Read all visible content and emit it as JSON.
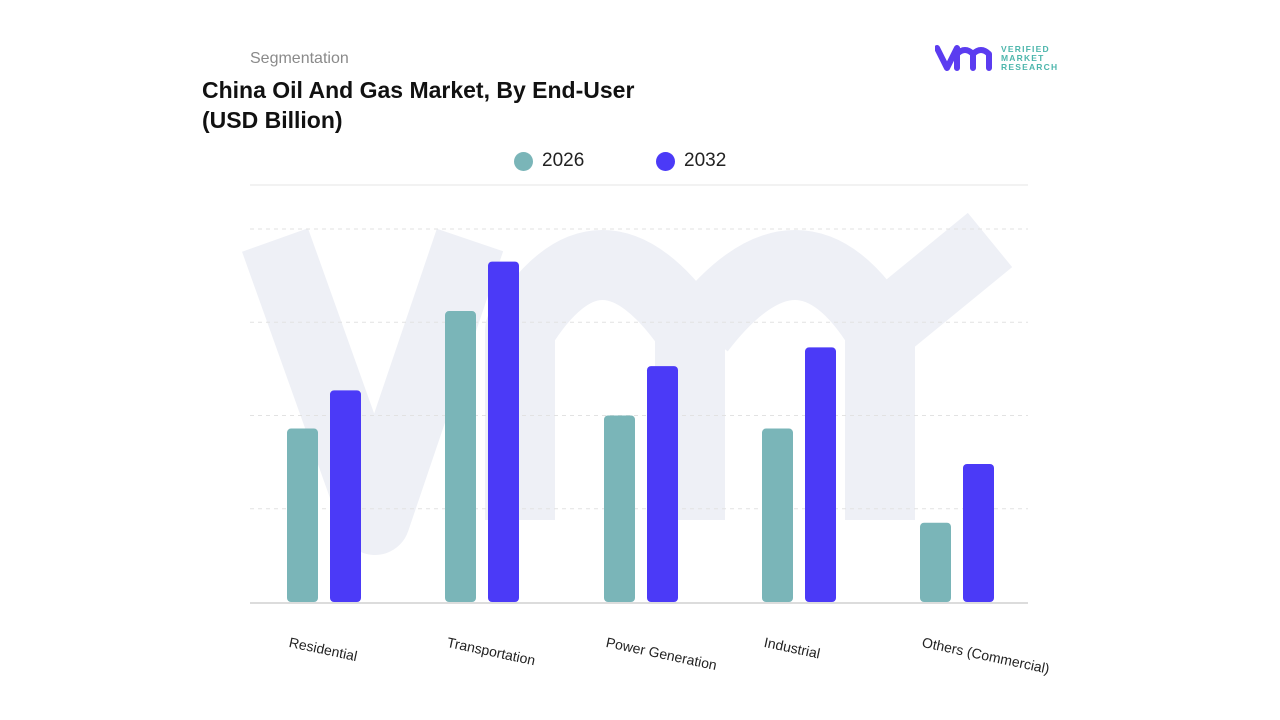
{
  "header": {
    "segment_label": "Segmentation",
    "title": "China Oil And Gas Market, By End-User",
    "subtitle": "(USD Billion)"
  },
  "logo": {
    "text_lines": [
      "VERIFIED",
      "MARKET",
      "RESEARCH"
    ],
    "brand_mark": "vmr"
  },
  "colors": {
    "2026": "#7ab5b8",
    "2032": "#4b3af7",
    "logo_mark": "#5b3cf0",
    "logo_text": "#4db6ac"
  },
  "chart_data": {
    "type": "bar",
    "title": "China Oil And Gas Market, By End-User",
    "ylabel": "",
    "xlabel": "",
    "categories": [
      "Residential",
      "Transportation",
      "Power Generation",
      "Industrial",
      "Others (Commercial)"
    ],
    "series": [
      {
        "name": "2026",
        "values": [
          1.86,
          3.12,
          2.0,
          1.86,
          0.85
        ]
      },
      {
        "name": "2032",
        "values": [
          2.27,
          3.65,
          2.53,
          2.73,
          1.48
        ]
      }
    ],
    "ylim": [
      0,
      4
    ],
    "grid": true,
    "legend": "top-center",
    "note_units": "relative; no y-axis tick labels printed"
  }
}
